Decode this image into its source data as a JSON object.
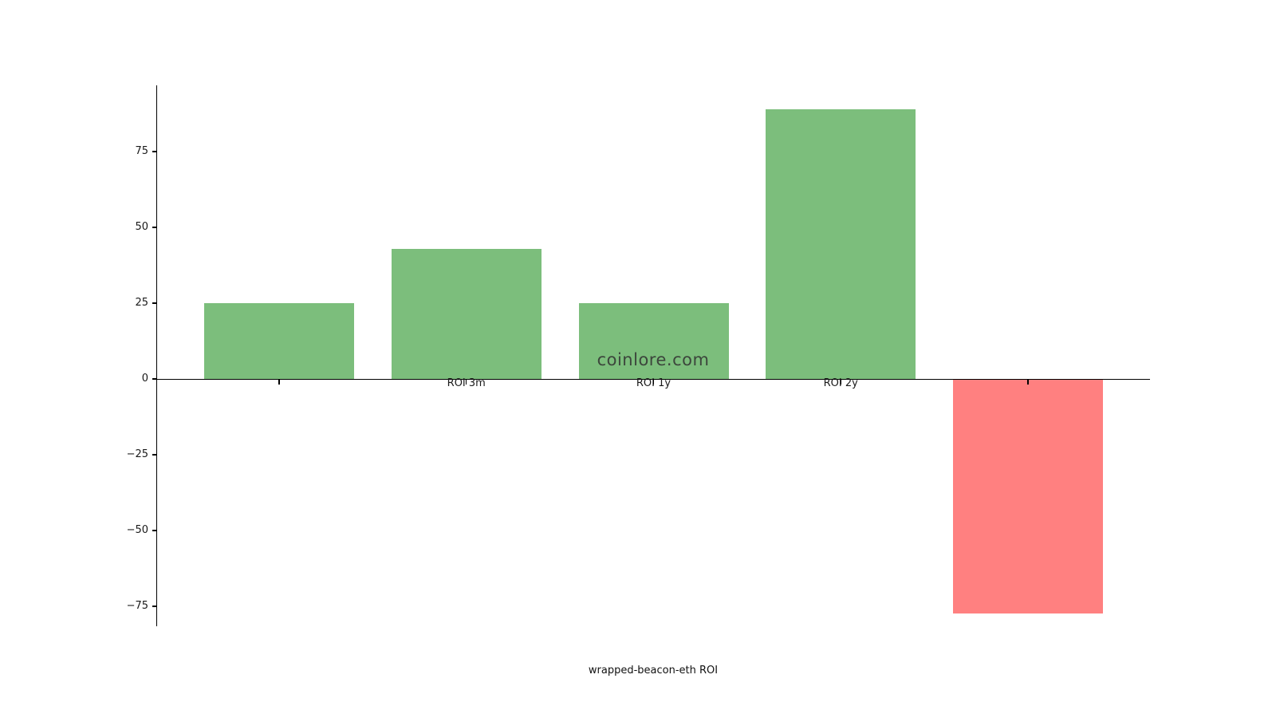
{
  "page": {
    "background_color": "#ffffff"
  },
  "watermark": {
    "text": "coinlore.com",
    "color": "#3c463c"
  },
  "chart_data": {
    "type": "bar",
    "title": "wrapped-beacon-eth ROI",
    "categories": [
      "",
      "ROI 3m",
      "ROI 1y",
      "ROI 2y",
      ""
    ],
    "values": [
      25,
      43,
      25,
      89,
      -77
    ],
    "bar_colors": [
      "#7CBE7C",
      "#7CBE7C",
      "#7CBE7C",
      "#7CBE7C",
      "#FF8080"
    ],
    "positive_color": "#7CBE7C",
    "negative_color": "#FF8080",
    "xlabel": "",
    "ylabel": "",
    "y_ticks": [
      75,
      50,
      25,
      0,
      -25,
      -50,
      -75
    ],
    "y_tick_labels": [
      "75",
      "50",
      "25",
      "0",
      "−25",
      "−50",
      "−75"
    ],
    "ylim": [
      -83,
      98
    ],
    "grid": false,
    "legend_position": "none",
    "axis_color": "#000000",
    "tick_label_color": "#1a1a1a"
  }
}
